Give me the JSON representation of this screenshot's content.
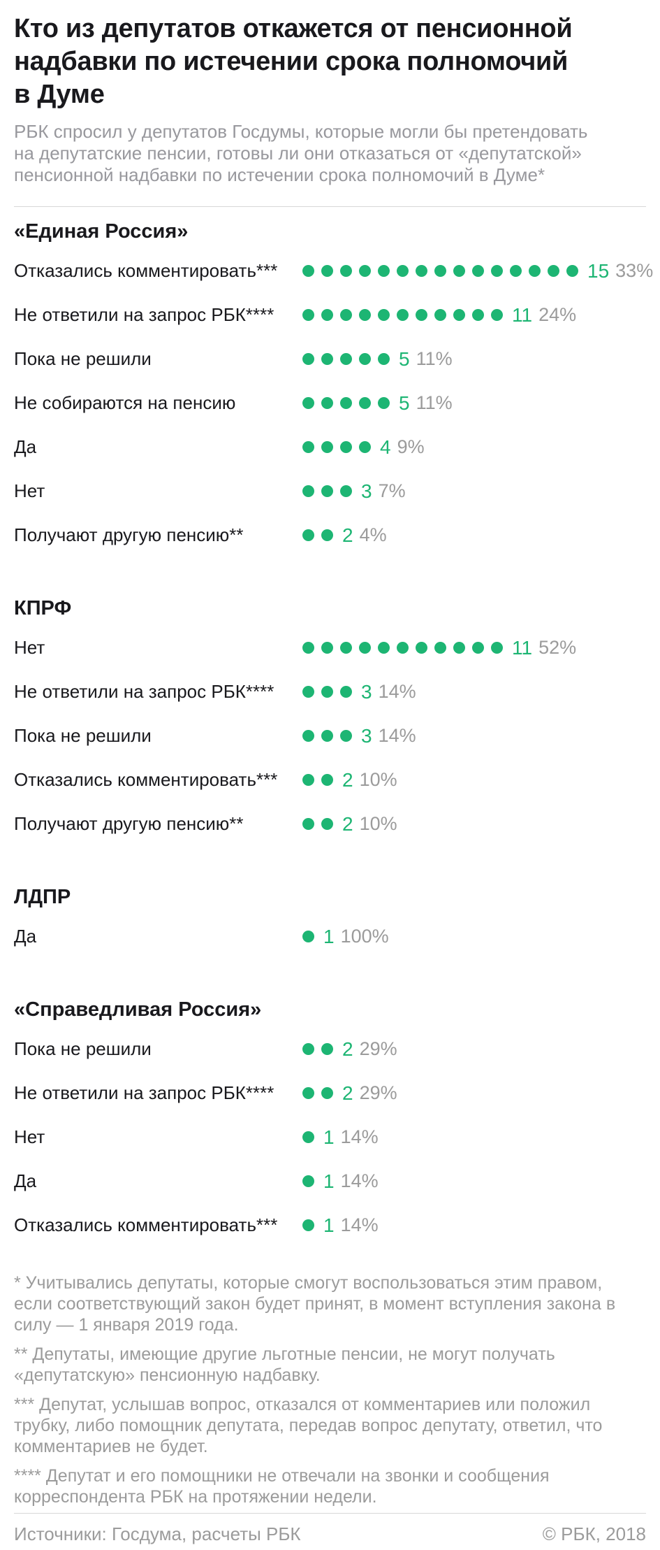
{
  "page": {
    "title_lines": [
      "Кто из депутатов откажется от пенсионной",
      "надбавки по истечении срока полномочий",
      "в Думе"
    ],
    "subtitle_lines": [
      "РБК спросил у депутатов Госдумы, которые могли бы претендовать",
      "на депутатские пенсии, готовы ли они отказаться от «депутатской»",
      "пенсионной надбавки по истечении срока полномочий в Думе*"
    ]
  },
  "colors": {
    "accent_green": "#1db573",
    "muted_gray": "#9b9b9b",
    "text_dark": "#19191d",
    "divider": "#d8d8d8"
  },
  "chart_data": {
    "type": "bar",
    "subtype": "pictogram-dot-bars",
    "title": "Кто из депутатов откажется от пенсионной надбавки по истечении срока полномочий в Думе",
    "unit": "депутаты (1 точка = 1 депутат)",
    "legend": false,
    "grid": false,
    "groups": [
      {
        "name": "«Единая Россия»",
        "rows": [
          {
            "label": "Отказались комментировать***",
            "value": 15,
            "percent": "33%"
          },
          {
            "label": "Не ответили на запрос РБК****",
            "value": 11,
            "percent": "24%"
          },
          {
            "label": "Пока не решили",
            "value": 5,
            "percent": "11%"
          },
          {
            "label": "Не собираются на пенсию",
            "value": 5,
            "percent": "11%"
          },
          {
            "label": "Да",
            "value": 4,
            "percent": "9%"
          },
          {
            "label": "Нет",
            "value": 3,
            "percent": "7%"
          },
          {
            "label": "Получают другую пенсию**",
            "value": 2,
            "percent": "4%"
          }
        ]
      },
      {
        "name": "КПРФ",
        "rows": [
          {
            "label": "Нет",
            "value": 11,
            "percent": "52%"
          },
          {
            "label": "Не ответили на запрос РБК****",
            "value": 3,
            "percent": "14%"
          },
          {
            "label": "Пока не решили",
            "value": 3,
            "percent": "14%"
          },
          {
            "label": "Отказались комментировать***",
            "value": 2,
            "percent": "10%"
          },
          {
            "label": "Получают другую пенсию**",
            "value": 2,
            "percent": "10%"
          }
        ]
      },
      {
        "name": "ЛДПР",
        "rows": [
          {
            "label": "Да",
            "value": 1,
            "percent": "100%"
          }
        ]
      },
      {
        "name": "«Справедливая Россия»",
        "rows": [
          {
            "label": "Пока не решили",
            "value": 2,
            "percent": "29%"
          },
          {
            "label": "Не ответили на запрос РБК****",
            "value": 2,
            "percent": "29%"
          },
          {
            "label": "Нет",
            "value": 1,
            "percent": "14%"
          },
          {
            "label": "Да",
            "value": 1,
            "percent": "14%"
          },
          {
            "label": "Отказались комментировать***",
            "value": 1,
            "percent": "14%"
          }
        ]
      }
    ]
  },
  "footnotes": [
    "* Учитывались депутаты, которые смогут воспользоваться этим правом, если соответствующий закон будет принят, в момент вступления закона в силу — 1 января 2019 года.",
    "** Депутаты, имеющие другие льготные пенсии, не могут получать «депутатскую» пенсионную надбавку.",
    "*** Депутат, услышав вопрос, отказался от комментариев или положил трубку, либо помощник депутата, передав вопрос депутату, ответил, что комментариев не будет.",
    "**** Депутат и его помощники не отвечали на звонки и сообщения корреспондента РБК на протяжении недели."
  ],
  "footer": {
    "sources": "Источники: Госдума, расчеты РБК",
    "copyright": "© РБК, 2018"
  }
}
